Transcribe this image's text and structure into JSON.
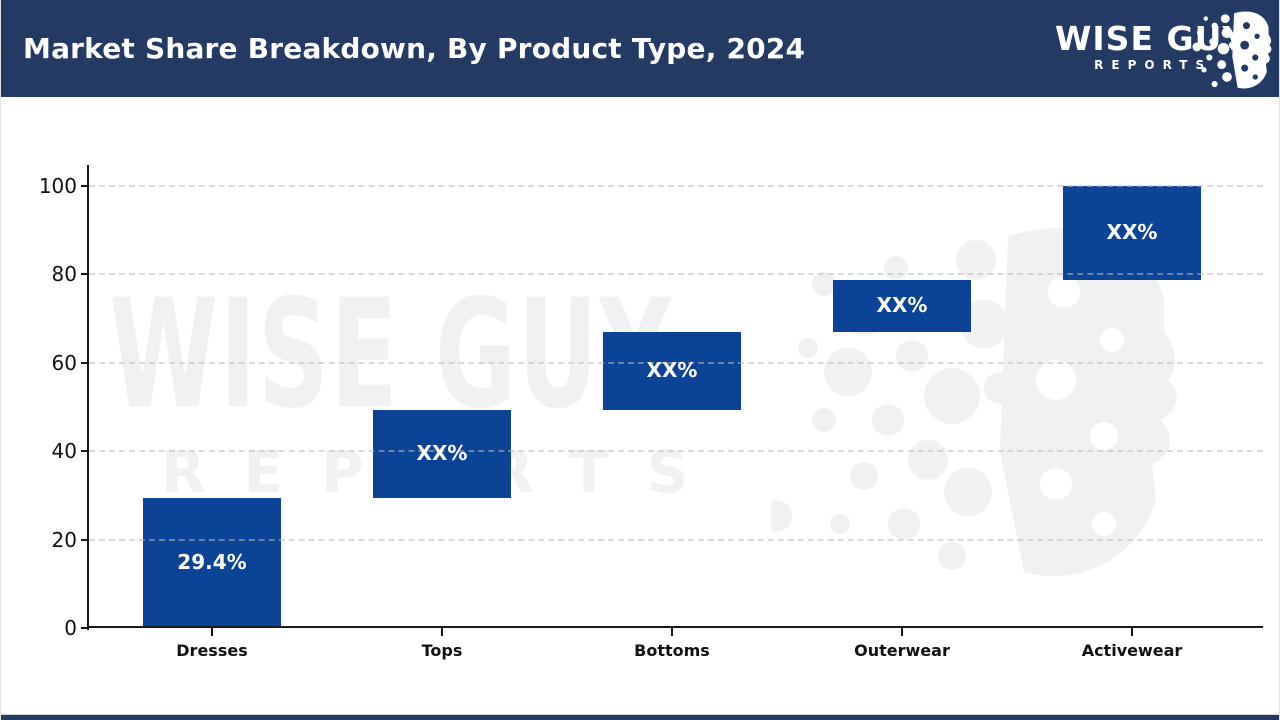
{
  "header": {
    "title": "Market Share Breakdown, By Product Type, 2024",
    "bg_color": "#233a65",
    "logo": {
      "line1": "WISE GUY",
      "line2": "REPORTS"
    }
  },
  "watermark": {
    "line1": "WISE GUY",
    "line2": "REPORTS"
  },
  "footer": {
    "bg_color": "#233a65"
  },
  "chart_data": {
    "type": "bar",
    "subtype": "waterfall",
    "title": "Market Share Breakdown, By Product Type, 2024",
    "categories": [
      "Dresses",
      "Tops",
      "Bottoms",
      "Outerwear",
      "Activewear"
    ],
    "segments": [
      {
        "category": "Dresses",
        "start": 0,
        "end": 29.4,
        "value": 29.4,
        "label": "29.4%"
      },
      {
        "category": "Tops",
        "start": 29.4,
        "end": 49.4,
        "value": 20.0,
        "label": "XX%"
      },
      {
        "category": "Bottoms",
        "start": 49.4,
        "end": 66.9,
        "value": 17.5,
        "label": "XX%"
      },
      {
        "category": "Outerwear",
        "start": 66.9,
        "end": 78.7,
        "value": 11.8,
        "label": "XX%"
      },
      {
        "category": "Activewear",
        "start": 78.7,
        "end": 100.0,
        "value": 21.3,
        "label": "XX%"
      }
    ],
    "y_ticks": [
      0,
      20,
      40,
      60,
      80,
      100
    ],
    "ylim": [
      0,
      105
    ],
    "xlabel": "",
    "ylabel": "",
    "grid": true,
    "grid_style": "dashed",
    "bar_color": "#0b4396",
    "label_color": "#ffffff",
    "legend": "none"
  }
}
